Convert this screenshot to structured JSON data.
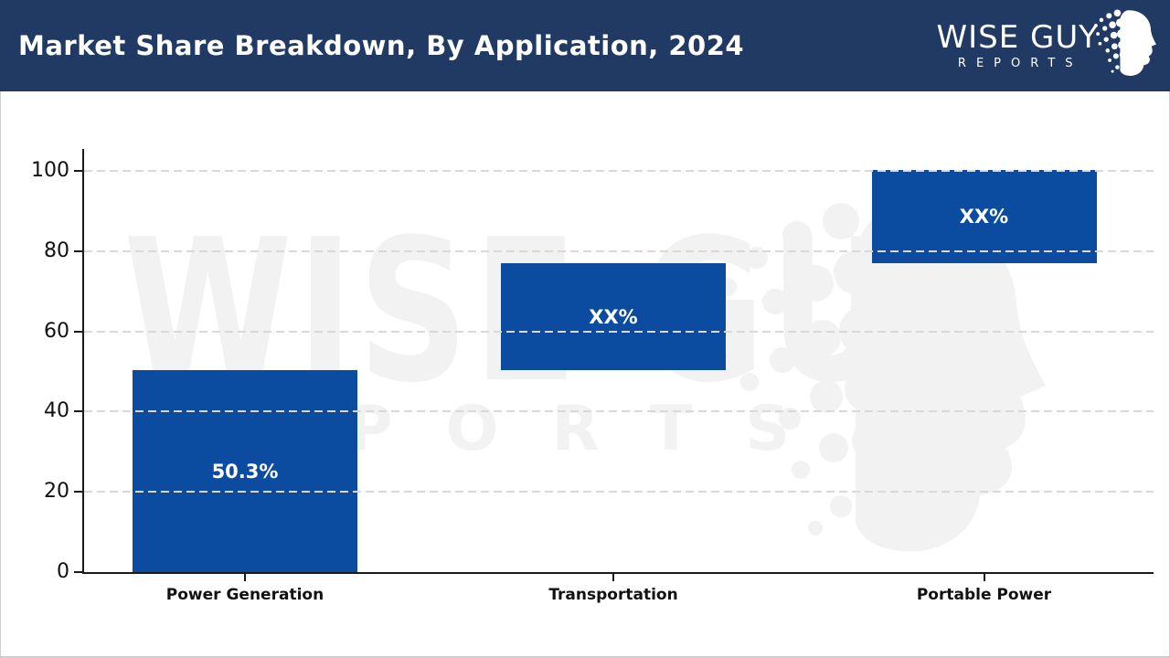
{
  "header": {
    "title": "Market Share Breakdown, By Application, 2024",
    "logo": {
      "line1": "WISE GUY",
      "line2": "REPORTS"
    }
  },
  "watermark": {
    "line1": "WISE GUY",
    "line2": "REPORTS"
  },
  "chart_data": {
    "type": "bar",
    "variant": "floating stacked-segment bars (waterfall-style market share)",
    "title": "Market Share Breakdown, By Application, 2024",
    "categories": [
      "Power Generation",
      "Transportation",
      "Portable Power"
    ],
    "series": [
      {
        "name": "Market share (%)",
        "segments": [
          {
            "category": "Power Generation",
            "start": 0,
            "end": 50.3,
            "label": "50.3%"
          },
          {
            "category": "Transportation",
            "start": 50.3,
            "end": 77,
            "label": "XX%"
          },
          {
            "category": "Portable Power",
            "start": 77,
            "end": 100.3,
            "label": "XX%"
          }
        ]
      }
    ],
    "xlabel": "",
    "ylabel": "",
    "yticks": [
      0,
      20,
      40,
      60,
      80,
      100
    ],
    "ylim": [
      0,
      105.5
    ],
    "grid": "horizontal dashed, drawn over bars",
    "legend": "none",
    "colors": {
      "bar": "#0b4ca1",
      "bar_label": "#ffffff",
      "grid": "#d9d9d9",
      "axis": "#1a1a1a",
      "header_bg": "#213a63",
      "watermark": "#f2f2f2"
    }
  }
}
